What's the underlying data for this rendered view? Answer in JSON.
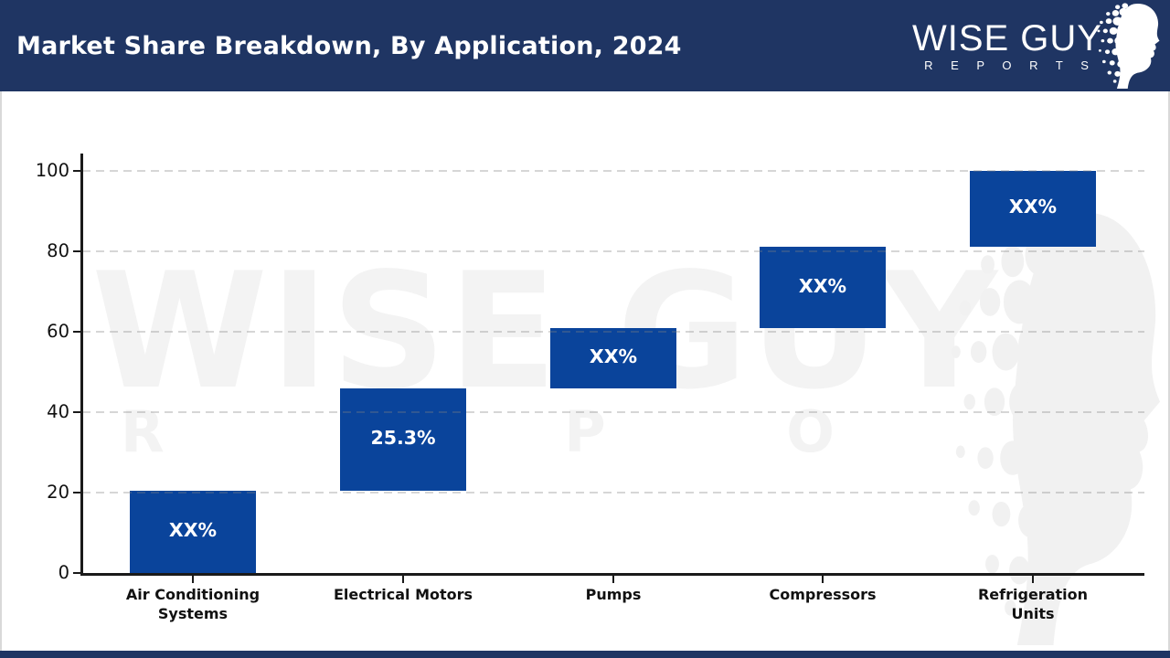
{
  "header": {
    "title": "Market Share Breakdown, By Application, 2024",
    "logo": {
      "name": "WISE GUY",
      "tagline": "R E P O R T S"
    }
  },
  "watermark": {
    "name": "WISE GUY",
    "tagline": "R E P O R T S"
  },
  "colors": {
    "header_bg": "#1f3563",
    "bar": "#0a449b",
    "bar_label": "#ffffff",
    "grid": "rgba(128,128,128,0.32)",
    "axis": "#1a1a1a",
    "watermark": "#f3f3f3"
  },
  "chart_data": {
    "type": "bar",
    "subtype": "waterfall",
    "title": "Market Share Breakdown, By Application, 2024",
    "categories": [
      "Air Conditioning Systems",
      "Electrical Motors",
      "Pumps",
      "Compressors",
      "Refrigeration Units"
    ],
    "category_lines": [
      [
        "Air Conditioning",
        "Systems"
      ],
      [
        "Electrical Motors"
      ],
      [
        "Pumps"
      ],
      [
        "Compressors"
      ],
      [
        "Refrigeration",
        "Units"
      ]
    ],
    "segments": [
      {
        "category": "Air Conditioning Systems",
        "start": 0,
        "end": 20.5,
        "label": "XX%"
      },
      {
        "category": "Electrical Motors",
        "start": 20.5,
        "end": 45.8,
        "label": "25.3%"
      },
      {
        "category": "Pumps",
        "start": 45.8,
        "end": 60.8,
        "label": "XX%"
      },
      {
        "category": "Compressors",
        "start": 60.8,
        "end": 81.2,
        "label": "XX%"
      },
      {
        "category": "Refrigeration Units",
        "start": 81.2,
        "end": 100,
        "label": "XX%"
      }
    ],
    "xlabel": "",
    "ylabel": "",
    "ylim": [
      0,
      100
    ],
    "yticks": [
      0,
      20,
      40,
      60,
      80,
      100
    ],
    "grid": "horizontal dashed",
    "legend": "none"
  }
}
